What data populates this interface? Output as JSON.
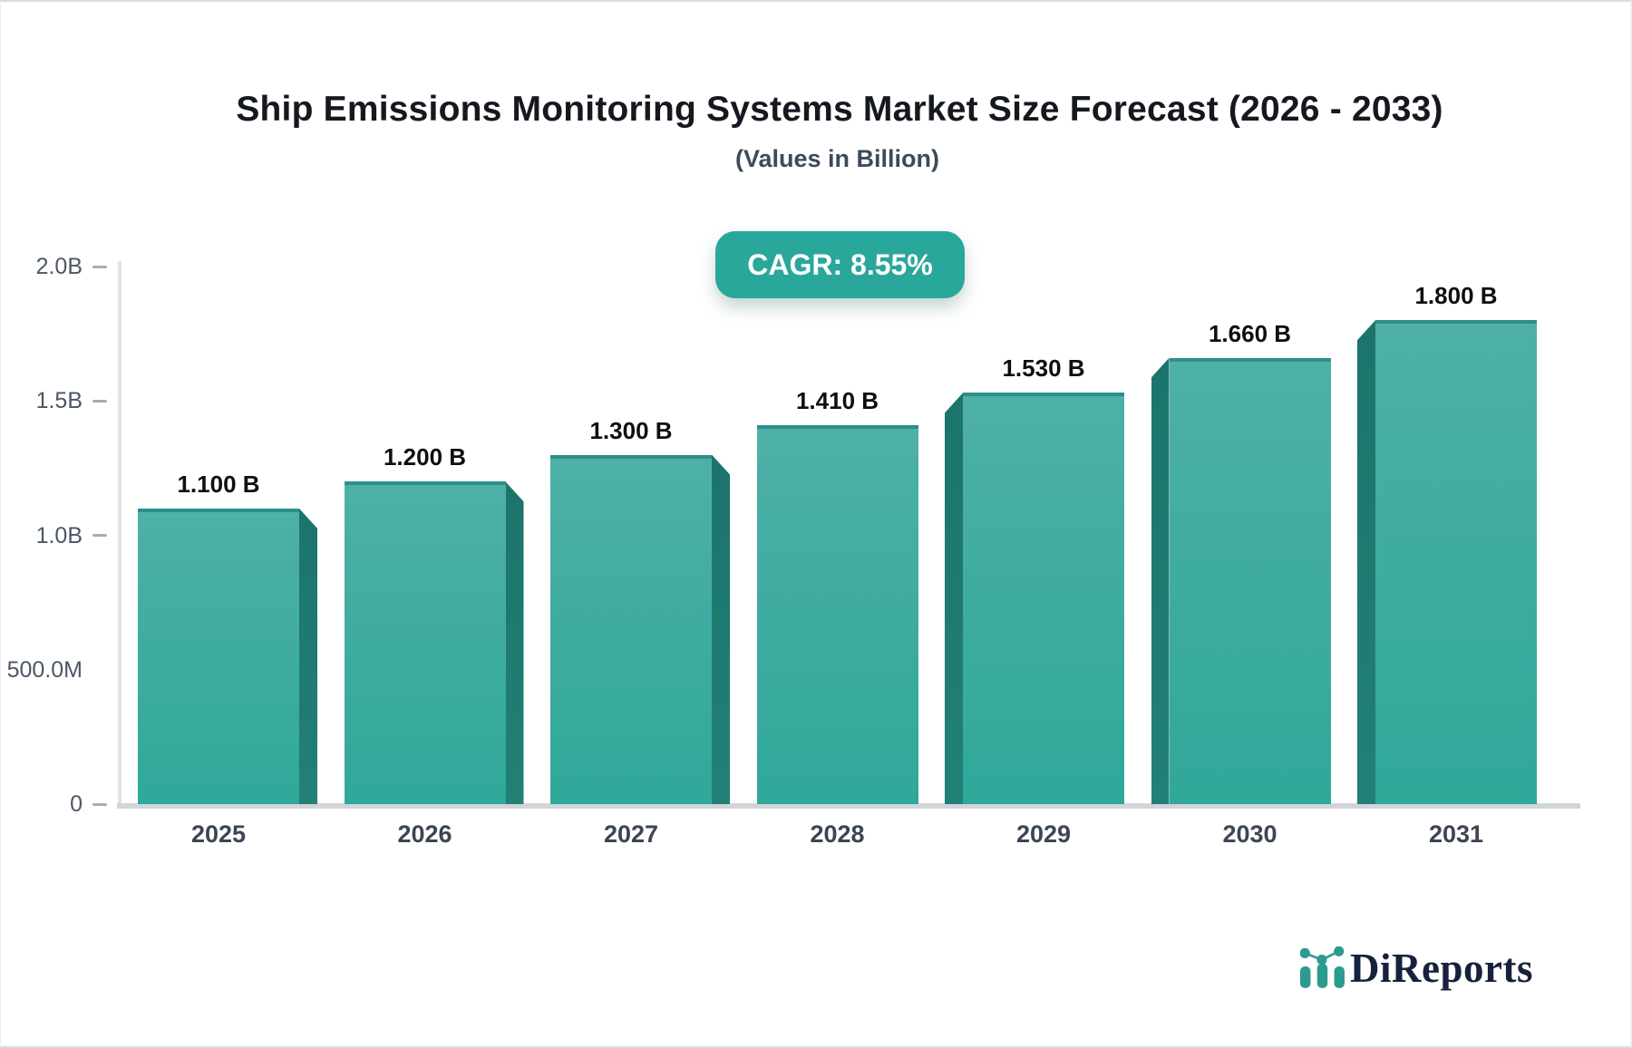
{
  "header": {
    "title": "Ship Emissions Monitoring Systems Market Size Forecast (2026 - 2033)",
    "subtitle": "(Values in Billion)",
    "cagr_badge": "CAGR: 8.55%"
  },
  "chart_data": {
    "type": "bar",
    "title": "Ship Emissions Monitoring Systems Market Size Forecast (2026 - 2033)",
    "subtitle": "(Values in Billion)",
    "annotation_badge": "CAGR: 8.55%",
    "categories": [
      "2025",
      "2026",
      "2027",
      "2028",
      "2029",
      "2030",
      "2031"
    ],
    "values": [
      1.1,
      1.2,
      1.3,
      1.41,
      1.53,
      1.66,
      1.8
    ],
    "value_labels": [
      "1.100 B",
      "1.200 B",
      "1.300 B",
      "1.410 B",
      "1.530 B",
      "1.660 B",
      "1.800 B"
    ],
    "unit": "Billion",
    "xlabel": "",
    "ylabel": "",
    "ylim": [
      0,
      2.0
    ],
    "grid": false,
    "legend": false,
    "y_axis_ticks": [
      {
        "label": "2.0B",
        "value": 2.0,
        "tick": true
      },
      {
        "label": "1.5B",
        "value": 1.5,
        "tick": true
      },
      {
        "label": "1.0B",
        "value": 1.0,
        "tick": true
      },
      {
        "label": "500.0M",
        "value": 0.5,
        "tick": false
      },
      {
        "label": "0",
        "value": 0.0,
        "tick": true
      }
    ]
  },
  "branding": {
    "logo_text": "DiReports",
    "logo_icon": "bar-chart-trend-icon"
  },
  "colors": {
    "title_color": "#15191f",
    "slate": "#3d4a5b",
    "badge_bg": "#2aa79b",
    "bar_top": "#4eb0a7",
    "bar_bottom": "#2fa89a",
    "bar_edge": "#2b9089",
    "bar_side_dark": "#1c746b",
    "bar_side_light": "#228076",
    "axis_gray": "#e3e4e8",
    "baseline_gray": "#d2d5da",
    "tick_gray": "#a6adb5",
    "y_label_color": "#4c5766",
    "x_label_color": "#3c4553",
    "value_color": "#0d0f12",
    "logo_navy": "#16213d",
    "logo_teal": "#2d9a90",
    "border_gray": "#d9dbde",
    "border_gray_light": "#eceef0"
  }
}
